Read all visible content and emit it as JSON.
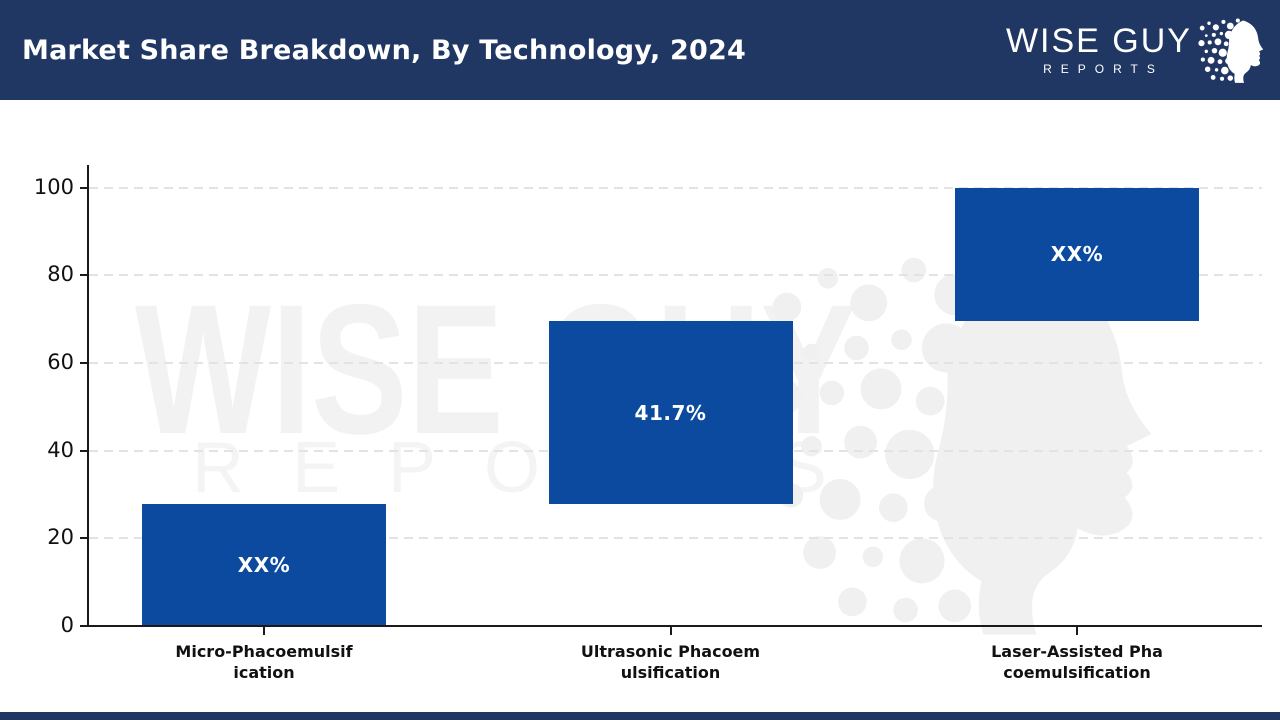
{
  "header": {
    "title": "Market Share Breakdown, By Technology, 2024",
    "logo": {
      "brand_top": "WISE GUY",
      "brand_bottom": "REPORTS",
      "face_icon": "dotted-face-profile-icon"
    }
  },
  "watermark": {
    "line1": "WISE GUY",
    "line2": "REPORTS",
    "face_icon": "dotted-face-profile-icon"
  },
  "colors": {
    "header_bg": "#203764",
    "footer_bg": "#203764",
    "bar": "#0b4a9e",
    "bar_label": "#ffffff",
    "axis": "#1a1a1a",
    "grid": "#e3e3e3",
    "watermark": "#f2f2f2"
  },
  "chart_data": {
    "type": "bar",
    "subtype": "stacked-waterfall",
    "title": "Market Share Breakdown, By Technology, 2024",
    "categories": [
      "Micro-Phacoemulsification",
      "Ultrasonic Phacoemulsification",
      "Laser-Assisted Phacoemulsification"
    ],
    "category_label_lines": [
      [
        "Micro-Phacoemulsif",
        "ication"
      ],
      [
        "Ultrasonic Phacoem",
        "ulsification"
      ],
      [
        "Laser-Assisted Pha",
        "coemulsification"
      ]
    ],
    "series": [
      {
        "name": "Market share (%)",
        "segments": [
          {
            "category": "Micro-Phacoemulsification",
            "start": 0,
            "end": 27.8,
            "value": 27.8,
            "label": "XX%"
          },
          {
            "category": "Ultrasonic Phacoemulsification",
            "start": 27.8,
            "end": 69.5,
            "value": 41.7,
            "label": "41.7%"
          },
          {
            "category": "Laser-Assisted Phacoemulsification",
            "start": 69.5,
            "end": 100,
            "value": 30.5,
            "label": "XX%"
          }
        ]
      }
    ],
    "ylim": [
      0,
      100
    ],
    "yticks": [
      0,
      20,
      40,
      60,
      80,
      100
    ],
    "grid": "dashed-horizontal",
    "legend": "none",
    "xlabel": "",
    "ylabel": ""
  }
}
